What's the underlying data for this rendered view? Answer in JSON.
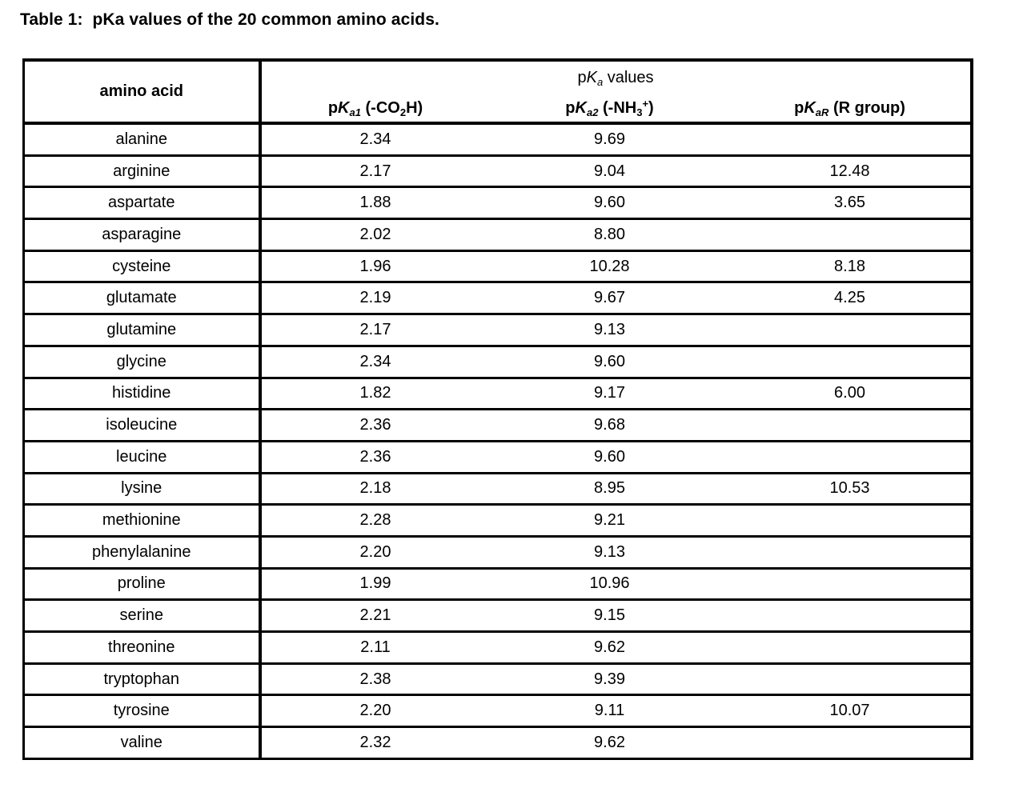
{
  "page": {
    "title": "Table 1:  pKa values of the 20 common amino acids."
  },
  "colors": {
    "background": "#ffffff",
    "text": "#000000",
    "border": "#000000"
  },
  "table": {
    "header": {
      "amino_acid": "amino acid",
      "pka_values_group": {
        "p": "p",
        "K": "K",
        "sub": "a",
        "rest": " values"
      },
      "pka1": {
        "p": "p",
        "K": "K",
        "sub": "a1",
        "open": " (-CO",
        "sub2": "2",
        "close": "H)"
      },
      "pka2": {
        "p": "p",
        "K": "K",
        "sub": "a2",
        "open": " (-NH",
        "sub2": "3",
        "sup": "+",
        "close": ")"
      },
      "pkar": {
        "p": "p",
        "K": "K",
        "sub": "aR",
        "rest": " (R group)"
      }
    },
    "rows": [
      {
        "amino_acid": "alanine",
        "pka1": "2.34",
        "pka2": "9.69",
        "pkaR": ""
      },
      {
        "amino_acid": "arginine",
        "pka1": "2.17",
        "pka2": "9.04",
        "pkaR": "12.48"
      },
      {
        "amino_acid": "aspartate",
        "pka1": "1.88",
        "pka2": "9.60",
        "pkaR": "3.65"
      },
      {
        "amino_acid": "asparagine",
        "pka1": "2.02",
        "pka2": "8.80",
        "pkaR": ""
      },
      {
        "amino_acid": "cysteine",
        "pka1": "1.96",
        "pka2": "10.28",
        "pkaR": "8.18"
      },
      {
        "amino_acid": "glutamate",
        "pka1": "2.19",
        "pka2": "9.67",
        "pkaR": "4.25"
      },
      {
        "amino_acid": "glutamine",
        "pka1": "2.17",
        "pka2": "9.13",
        "pkaR": ""
      },
      {
        "amino_acid": "glycine",
        "pka1": "2.34",
        "pka2": "9.60",
        "pkaR": ""
      },
      {
        "amino_acid": "histidine",
        "pka1": "1.82",
        "pka2": "9.17",
        "pkaR": "6.00"
      },
      {
        "amino_acid": "isoleucine",
        "pka1": "2.36",
        "pka2": "9.68",
        "pkaR": ""
      },
      {
        "amino_acid": "leucine",
        "pka1": "2.36",
        "pka2": "9.60",
        "pkaR": ""
      },
      {
        "amino_acid": "lysine",
        "pka1": "2.18",
        "pka2": "8.95",
        "pkaR": "10.53"
      },
      {
        "amino_acid": "methionine",
        "pka1": "2.28",
        "pka2": "9.21",
        "pkaR": ""
      },
      {
        "amino_acid": "phenylalanine",
        "pka1": "2.20",
        "pka2": "9.13",
        "pkaR": ""
      },
      {
        "amino_acid": "proline",
        "pka1": "1.99",
        "pka2": "10.96",
        "pkaR": ""
      },
      {
        "amino_acid": "serine",
        "pka1": "2.21",
        "pka2": "9.15",
        "pkaR": ""
      },
      {
        "amino_acid": "threonine",
        "pka1": "2.11",
        "pka2": "9.62",
        "pkaR": ""
      },
      {
        "amino_acid": "tryptophan",
        "pka1": "2.38",
        "pka2": "9.39",
        "pkaR": ""
      },
      {
        "amino_acid": "tyrosine",
        "pka1": "2.20",
        "pka2": "9.11",
        "pkaR": "10.07"
      },
      {
        "amino_acid": "valine",
        "pka1": "2.32",
        "pka2": "9.62",
        "pkaR": ""
      }
    ]
  }
}
